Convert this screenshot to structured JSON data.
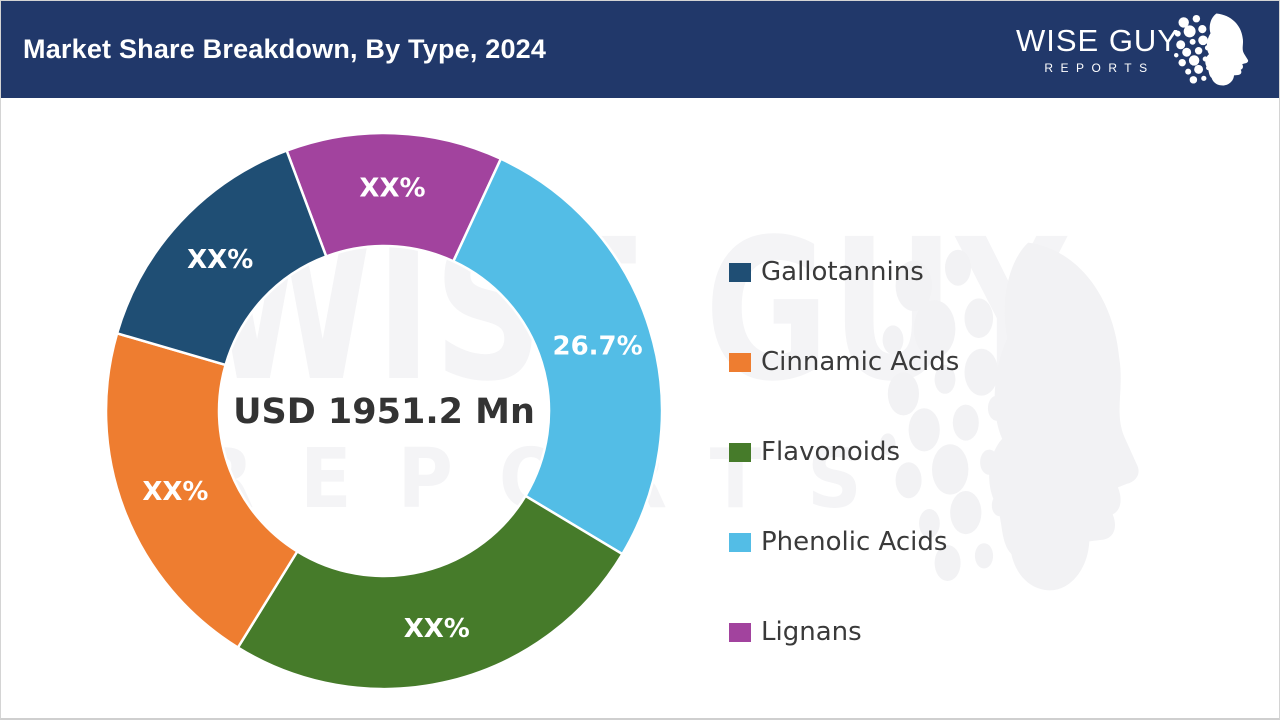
{
  "page": {
    "background": "#ffffff",
    "border_color": "#d4d4d4"
  },
  "header": {
    "title": "Market Share Breakdown, By Type, 2024",
    "background": "#21386a",
    "text_color": "#ffffff",
    "logo": {
      "primary": "WISE GUY",
      "secondary": "REPORTS"
    }
  },
  "watermark": {
    "big_text": "WISE GUY",
    "spaced_text": "REPORTS",
    "color": "#f4f4f6",
    "face_icon": "wiseguy-face"
  },
  "chart_data": {
    "type": "pie",
    "subtype": "donut",
    "title": "Market Share Breakdown, By Type, 2024",
    "center_text": "USD 1951.2 Mn",
    "direction": "clockwise",
    "start_angle_deg_from_top": -20.5,
    "outer_radius": 278,
    "inner_radius": 165,
    "label_color": "#ffffff",
    "segments": [
      {
        "name": "Lignans",
        "display_label": "XX%",
        "share_pct_est": 12.6,
        "color": "#a2439e"
      },
      {
        "name": "Phenolic Acids",
        "display_label": "26.7%",
        "share_pct_est": 26.7,
        "color": "#53bde6"
      },
      {
        "name": "Flavonoids",
        "display_label": "XX%",
        "share_pct_est": 25.2,
        "color": "#467b2a"
      },
      {
        "name": "Cinnamic Acids",
        "display_label": "XX%",
        "share_pct_est": 20.7,
        "color": "#ee7d30"
      },
      {
        "name": "Gallotannins",
        "display_label": "XX%",
        "share_pct_est": 14.8,
        "color": "#1f4e74"
      }
    ],
    "legend": {
      "position": "right",
      "items": [
        {
          "label": "Gallotannins",
          "color": "#1f4e74"
        },
        {
          "label": "Cinnamic Acids",
          "color": "#ee7d30"
        },
        {
          "label": "Flavonoids",
          "color": "#467b2a"
        },
        {
          "label": "Phenolic Acids",
          "color": "#53bde6"
        },
        {
          "label": "Lignans",
          "color": "#a2439e"
        }
      ]
    }
  }
}
